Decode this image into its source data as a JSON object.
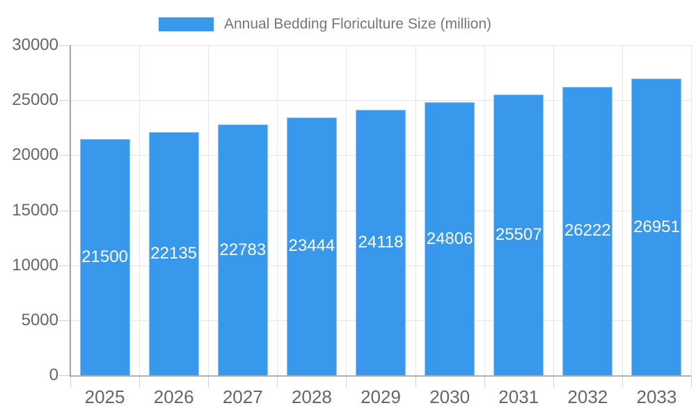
{
  "legend": {
    "label": "Annual Bedding Floriculture Size (million)"
  },
  "chart_data": {
    "type": "bar",
    "title": "Annual Bedding Floriculture Size (million)",
    "categories": [
      "2025",
      "2026",
      "2027",
      "2028",
      "2029",
      "2030",
      "2031",
      "2032",
      "2033"
    ],
    "values": [
      21500,
      22135,
      22783,
      23444,
      24118,
      24806,
      25507,
      26222,
      26951
    ],
    "xlabel": "",
    "ylabel": "",
    "ylim": [
      0,
      30000
    ],
    "yticks": [
      0,
      5000,
      10000,
      15000,
      20000,
      25000,
      30000
    ],
    "grid": true,
    "legend_position": "top-center",
    "bar_color": "#3899ec",
    "bar_border_color": "rgba(255,255,255,0.45)",
    "value_label_color": "#ffffff",
    "axis_label_color": "#666666",
    "legend_text_color": "#757575",
    "gridline_color": "#e6e6e6",
    "axis_line_color": "#b0b0b0"
  }
}
